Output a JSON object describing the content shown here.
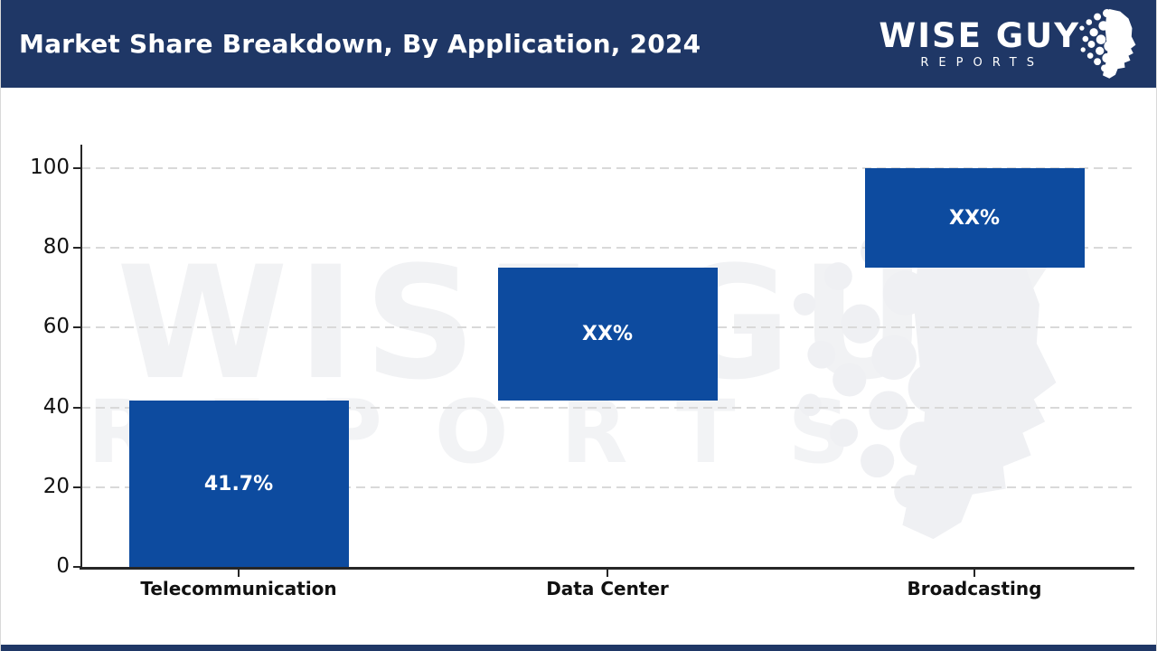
{
  "header": {
    "title": "Market Share Breakdown, By Application, 2024"
  },
  "logo": {
    "line1": "WISE GUY",
    "line2": "REPORTS",
    "face_icon": "dotted-face-profile"
  },
  "watermark": {
    "line1": "WISE GUY",
    "line2": "REPORTS",
    "face_icon": "dotted-face-profile"
  },
  "chart_data": {
    "type": "bar",
    "subtype": "waterfall",
    "title": "Market Share Breakdown, By Application, 2024",
    "categories": [
      "Telecommunication",
      "Data Center",
      "Broadcasting"
    ],
    "segments": [
      {
        "category": "Telecommunication",
        "from": 0,
        "to": 41.7,
        "label": "41.7%"
      },
      {
        "category": "Data Center",
        "from": 41.7,
        "to": 75,
        "label": "XX%"
      },
      {
        "category": "Broadcasting",
        "from": 75,
        "to": 100,
        "label": "XX%"
      }
    ],
    "yticks": [
      0,
      20,
      40,
      60,
      80,
      100
    ],
    "ylim": [
      0,
      105
    ],
    "xlabel": "",
    "ylabel": "",
    "grid": "horizontal-dashed",
    "legend": "none",
    "bar_color": "#0d4b9f"
  },
  "colors": {
    "header_bg": "#1f3766",
    "footer_bg": "#1f3766",
    "bar": "#0d4b9f",
    "gridline": "#d9d9d9",
    "axis": "#262626",
    "watermark": "#f1f2f4"
  }
}
